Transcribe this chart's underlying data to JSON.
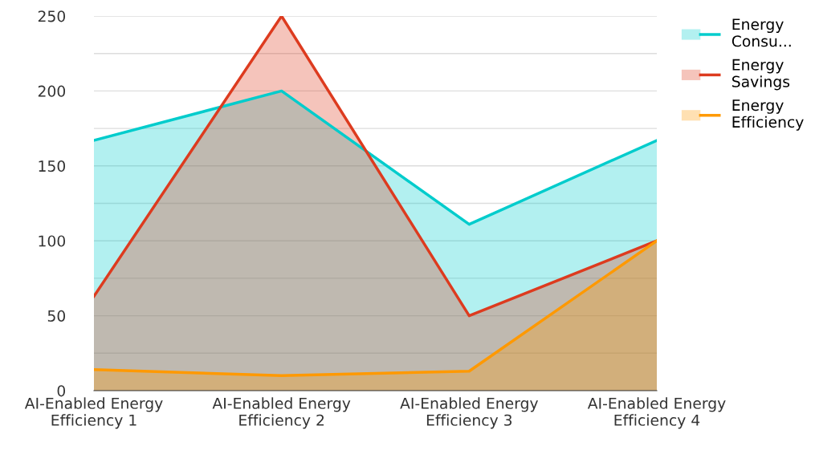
{
  "chart_data": {
    "type": "area",
    "categories": [
      "AI-Enabled Energy Efficiency 1",
      "AI-Enabled Energy Efficiency 2",
      "AI-Enabled Energy Efficiency 3",
      "AI-Enabled Energy Efficiency 4"
    ],
    "series": [
      {
        "name": "Energy Consu...",
        "color": "#00cccc",
        "values": [
          167,
          200,
          111,
          167
        ]
      },
      {
        "name": "Energy Savings",
        "color": "#dd3b1f",
        "values": [
          63,
          250,
          50,
          100
        ]
      },
      {
        "name": "Energy Efficiency",
        "color": "#ff9900",
        "values": [
          14,
          10,
          13,
          100
        ]
      }
    ],
    "ylim": [
      0,
      250
    ],
    "yticks": [
      0,
      {
        "value": 25,
        "label": null
      },
      50,
      {
        "value": 75,
        "label": null
      },
      100,
      {
        "value": 125,
        "label": null
      },
      150,
      {
        "value": 175,
        "label": null
      },
      200,
      {
        "value": 225,
        "label": null
      },
      250
    ],
    "grid": "y",
    "legend": "top right"
  }
}
